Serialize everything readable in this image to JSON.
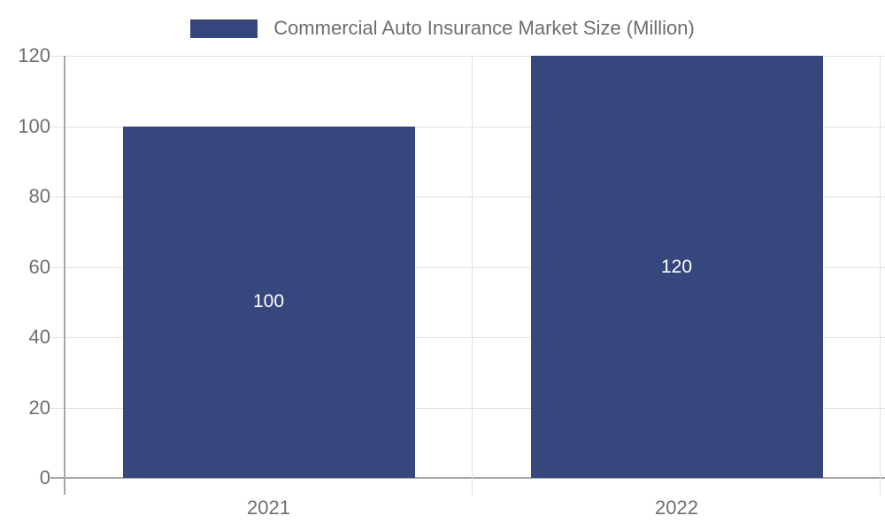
{
  "chart_data": {
    "type": "bar",
    "legend": "Commercial Auto Insurance Market Size (Million)",
    "legend_position": "top",
    "categories": [
      "2021",
      "2022"
    ],
    "series": [
      {
        "name": "Commercial Auto Insurance Market Size (Million)",
        "values": [
          100,
          120
        ]
      }
    ],
    "data_labels": [
      "100",
      "120"
    ],
    "xlabel": "",
    "ylabel": "",
    "ylim": [
      0,
      120
    ],
    "ytick_step": 20,
    "yticks": [
      0,
      20,
      40,
      60,
      80,
      100,
      120
    ],
    "grid": true,
    "colors": {
      "bar": "#35477d",
      "axis_text": "#6e6e6e",
      "value_label": "#ffffff",
      "gridline": "#e2e2e2",
      "axis_line": "#a6a6a6",
      "background": "#ffffff"
    }
  }
}
